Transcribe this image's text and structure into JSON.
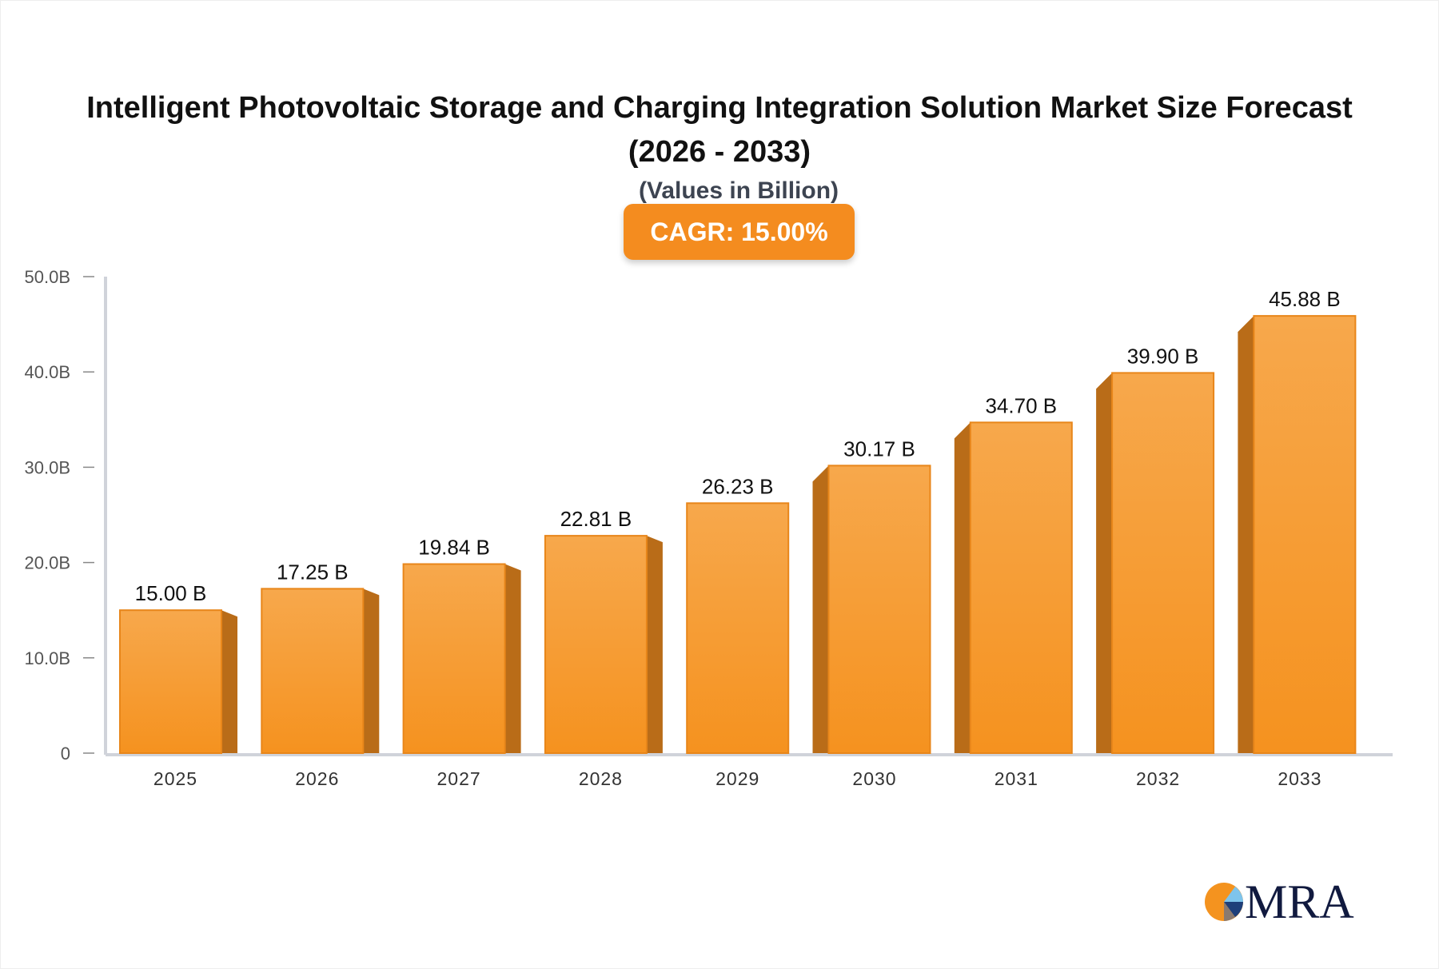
{
  "title": "Intelligent Photovoltaic Storage and Charging Integration Solution Market Size Forecast (2026 - 2033)",
  "subtitle": "(Values in Billion)",
  "cagr_label": "CAGR: 15.00%",
  "logo_text": "MRA",
  "colors": {
    "bar_front_top": "#f7a84c",
    "bar_front_bottom": "#f5921f",
    "bar_side": "#b96c18",
    "accent": "#f48c1f",
    "axis": "#d0d3da"
  },
  "chart_data": {
    "type": "bar",
    "title": "Intelligent Photovoltaic Storage and Charging Integration Solution Market Size Forecast (2026 - 2033)",
    "categories": [
      "2025",
      "2026",
      "2027",
      "2028",
      "2029",
      "2030",
      "2031",
      "2032",
      "2033"
    ],
    "values": [
      15.0,
      17.25,
      19.84,
      22.81,
      26.23,
      30.17,
      34.7,
      39.9,
      45.88
    ],
    "data_labels": [
      "15.00 B",
      "17.25 B",
      "19.84 B",
      "22.81 B",
      "26.23 B",
      "30.17 B",
      "34.70 B",
      "39.90 B",
      "45.88 B"
    ],
    "ytick_labels": [
      "0",
      "10.0B",
      "20.0B",
      "30.0B",
      "40.0B",
      "50.0B"
    ],
    "yticks": [
      0,
      10,
      20,
      30,
      40,
      50
    ],
    "ylim": [
      0,
      50
    ],
    "xlabel": "",
    "ylabel": "",
    "grid": false,
    "style": "3d-bar"
  }
}
